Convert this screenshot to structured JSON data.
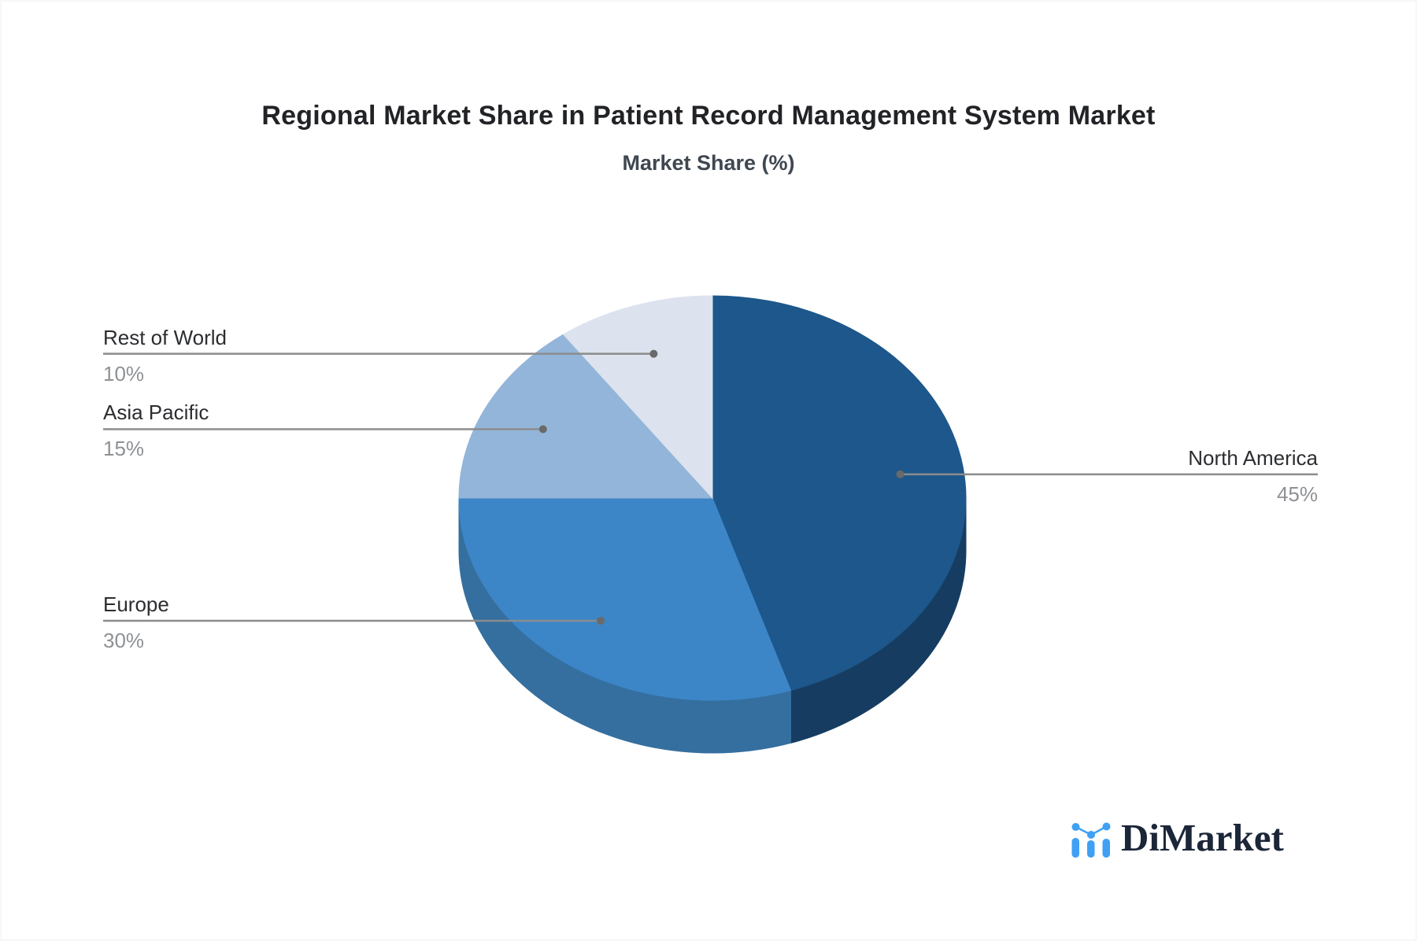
{
  "header": {
    "title": "Regional Market Share in Patient Record Management System Market",
    "subtitle": "Market Share (%)"
  },
  "chart_data": {
    "type": "pie",
    "title": "Regional Market Share in Patient Record Management System Market",
    "subtitle": "Market Share (%)",
    "unit": "%",
    "effect": "3d-depth",
    "start_angle_deg": 0,
    "direction": "clockwise",
    "legend_position": "leader-line-callouts",
    "slices": [
      {
        "label": "North America",
        "value": 45,
        "pct_label": "45%",
        "color": "#1D578B",
        "side_color": "#163D61"
      },
      {
        "label": "Europe",
        "value": 30,
        "pct_label": "30%",
        "color": "#3C86C8",
        "side_color": "#356F9F"
      },
      {
        "label": "Asia Pacific",
        "value": 15,
        "pct_label": "15%",
        "color": "#93B5D9",
        "side_color": "#7FA3C9"
      },
      {
        "label": "Rest of World",
        "value": 10,
        "pct_label": "10%",
        "color": "#DCE3EE",
        "side_color": "#C4CFE0"
      }
    ]
  },
  "branding": {
    "logo_text": "DiMarket"
  },
  "colors": {
    "background": "#FFFFFF",
    "title_text": "#212326",
    "subtitle_text": "#3F4751",
    "label_text": "#2B2D30",
    "pct_text": "#8E9195",
    "leader_line": "#8C8C8C",
    "leader_dot": "#6A6A6A",
    "logo_icon": "#3FA0F4",
    "logo_text": "#1B2638"
  }
}
